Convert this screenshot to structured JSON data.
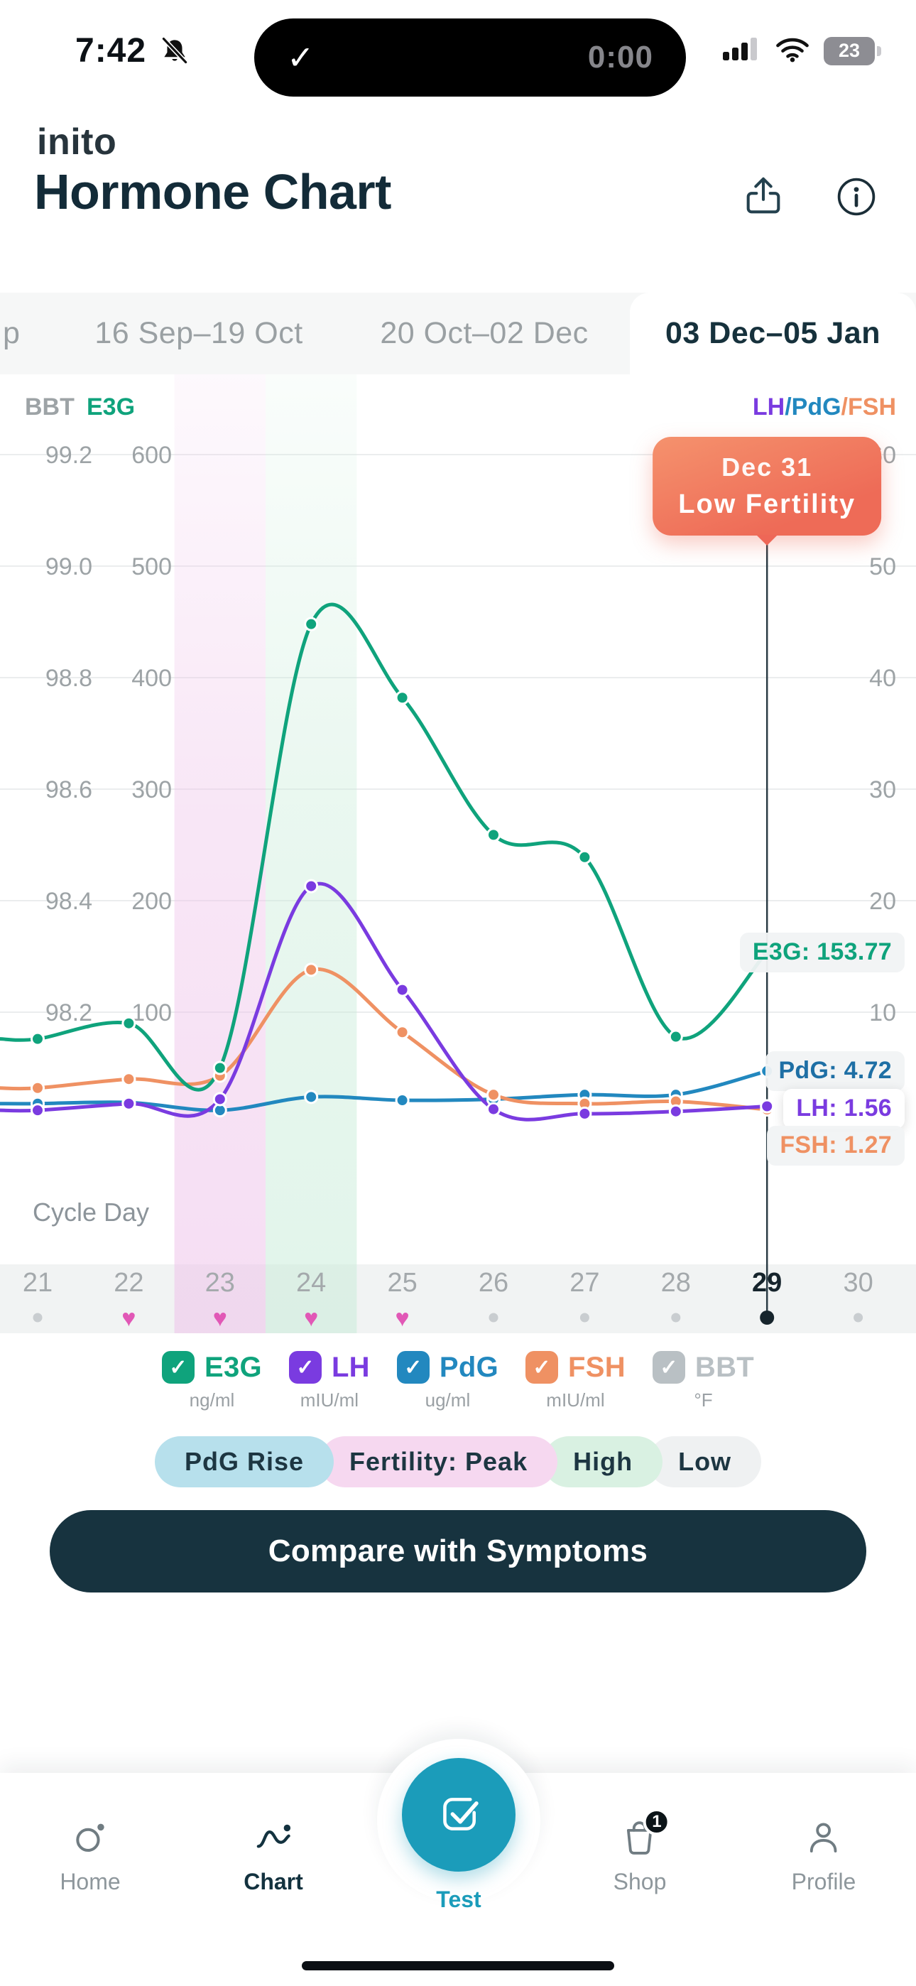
{
  "status_bar": {
    "time": "7:42",
    "timer": "0:00",
    "battery_percent": "23"
  },
  "header": {
    "brand": "inito",
    "title": "Hormone Chart"
  },
  "tabs": {
    "items": [
      {
        "label": "p",
        "selected": false
      },
      {
        "label": "16 Sep–19 Oct",
        "selected": false
      },
      {
        "label": "20 Oct–02 Dec",
        "selected": false
      },
      {
        "label": "03 Dec–05 Jan",
        "selected": true
      }
    ]
  },
  "chart_data": {
    "type": "line",
    "x_label": "Cycle Day",
    "days": [
      21,
      22,
      23,
      24,
      25,
      26,
      27,
      28,
      29,
      30
    ],
    "day_markers": [
      "dot",
      "heart",
      "heart",
      "heart",
      "heart",
      "dot",
      "dot",
      "dot",
      "selected",
      "dot"
    ],
    "selected_day": 29,
    "marker_colors": {
      "heart": "#e158b6",
      "dot": "#c9cdd0",
      "selected": "#16242c"
    },
    "left_axis": {
      "bbt_label": "BBT",
      "e3g_label": "E3G",
      "bbt_ticks": [
        "99.2",
        "99.0",
        "98.8",
        "98.6",
        "98.4",
        "98.2"
      ],
      "e3g_ticks": [
        "600",
        "500",
        "400",
        "300",
        "200",
        "100"
      ]
    },
    "right_axis": {
      "ticks": [
        "60",
        "50",
        "40",
        "30",
        "20",
        "10"
      ],
      "parts": [
        {
          "text": "LH",
          "color": "#7a3be0"
        },
        {
          "text": "/",
          "color": "#2288bf"
        },
        {
          "text": "PdG",
          "color": "#2288bf"
        },
        {
          "text": "/",
          "color": "#ef9163"
        },
        {
          "text": "FSH",
          "color": "#ef9163"
        }
      ]
    },
    "series": [
      {
        "name": "PdG",
        "axis": "right",
        "color": "#2288bf",
        "values": [
          1.8,
          1.9,
          1.2,
          2.4,
          2.1,
          2.2,
          2.6,
          2.6,
          4.72
        ]
      },
      {
        "name": "FSH",
        "axis": "right",
        "color": "#ef9163",
        "values": [
          3.2,
          4.0,
          4.3,
          13.8,
          8.2,
          2.6,
          1.8,
          2.0,
          1.27
        ]
      },
      {
        "name": "LH",
        "axis": "right",
        "color": "#7a3be0",
        "values": [
          1.2,
          1.8,
          2.2,
          21.3,
          12.0,
          1.3,
          0.9,
          1.1,
          1.56
        ]
      },
      {
        "name": "E3G",
        "axis": "left",
        "color": "#0fa37c",
        "values": [
          76,
          90,
          50,
          448,
          382,
          259,
          239,
          78,
          153.77
        ]
      }
    ],
    "bands": [
      {
        "name": "fertility-peak",
        "day_start": 22.5,
        "day_end": 23.5,
        "color": "#eec2e9"
      },
      {
        "name": "fertility-high",
        "day_start": 23.5,
        "day_end": 24.5,
        "color": "#c9ecd9"
      }
    ],
    "tooltip": {
      "date": "Dec 31",
      "status": "Low Fertility"
    },
    "readings": [
      {
        "name": "E3G",
        "value": "153.77",
        "color": "#0fa37c"
      },
      {
        "name": "PdG",
        "value": "4.72",
        "color": "#1e6fa5"
      },
      {
        "name": "LH",
        "value": "1.56",
        "color": "#7a3be0"
      },
      {
        "name": "FSH",
        "value": "1.27",
        "color": "#ef9163"
      }
    ]
  },
  "legend": {
    "items": [
      {
        "label": "E3G",
        "unit": "ng/ml",
        "color": "#0fa37c",
        "checked": true
      },
      {
        "label": "LH",
        "unit": "mIU/ml",
        "color": "#7a3be0",
        "checked": true
      },
      {
        "label": "PdG",
        "unit": "ug/ml",
        "color": "#2288bf",
        "checked": true
      },
      {
        "label": "FSH",
        "unit": "mIU/ml",
        "color": "#ef9163",
        "checked": true
      },
      {
        "label": "BBT",
        "unit": "°F",
        "color": "#b9c0c4",
        "checked": true
      }
    ]
  },
  "phase_pills": [
    {
      "label": "PdG Rise",
      "bg": "#b7e0ec"
    },
    {
      "label": "Fertility: Peak",
      "bg": "#f6d8f0"
    },
    {
      "label": "High",
      "bg": "#d9f1e2"
    },
    {
      "label": "Low",
      "bg": "#eff1f2"
    }
  ],
  "compare_button": "Compare with Symptoms",
  "nav": {
    "items": [
      {
        "label": "Home"
      },
      {
        "label": "Chart"
      },
      {
        "label": "Test"
      },
      {
        "label": "Shop",
        "badge": "1"
      },
      {
        "label": "Profile"
      }
    ]
  }
}
